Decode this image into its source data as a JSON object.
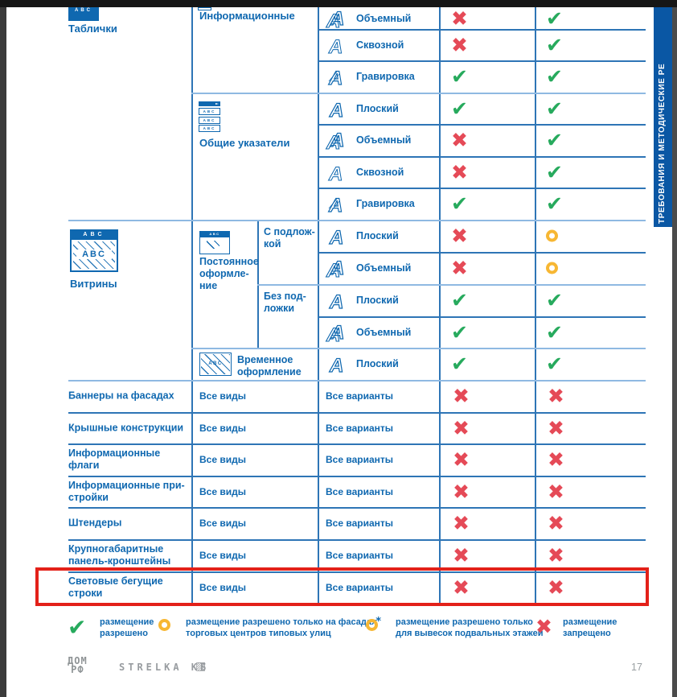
{
  "colors": {
    "brand-blue": "#0f68b0",
    "border-blue": "#2e75b6",
    "border-blue-light": "#8fb9e2",
    "tab-blue": "#0a57a4",
    "check-green": "#27aa5d",
    "cross-red": "#e54a57",
    "ring-yellow": "#f7b733",
    "highlight-red": "#e32119",
    "footer-gray": "#8f9496"
  },
  "side_tab": {
    "label": "ТРЕБОВАНИЯ И МЕТОДИЧЕСКИЕ РЕ"
  },
  "table": {
    "categories": {
      "tablichki": {
        "label": "Таблички",
        "icon_text": "ABC"
      },
      "vitriny": {
        "label": "Витрины",
        "icon_header": "ABC",
        "icon_body": "ABC"
      }
    },
    "groups": {
      "informacionnye": {
        "label": "Информационные"
      },
      "obshchie": {
        "label": "Общие указатели",
        "icon_rows": [
          "ABC",
          "ABC",
          "ABC"
        ]
      },
      "postoyannoe": {
        "label": "Постоянное\nоформле-\nние",
        "icon_text": "ABC"
      },
      "s_podlozhkoy": {
        "label": "С подлож-\nкой"
      },
      "bez_podlozhki": {
        "label": "Без под-\nложки"
      },
      "vremennoe": {
        "label": "Временное\nоформление",
        "icon_text": "ABC"
      }
    },
    "type_rows": [
      {
        "label": "Объемный",
        "m1": "cross",
        "m2": "check"
      },
      {
        "label": "Сквозной",
        "m1": "cross",
        "m2": "check"
      },
      {
        "label": "Гравировка",
        "m1": "check",
        "m2": "check"
      },
      {
        "label": "Плоский",
        "m1": "check",
        "m2": "check"
      },
      {
        "label": "Объемный",
        "m1": "cross",
        "m2": "check"
      },
      {
        "label": "Сквозной",
        "m1": "cross",
        "m2": "check"
      },
      {
        "label": "Гравировка",
        "m1": "check",
        "m2": "check"
      },
      {
        "label": "Плоский",
        "m1": "cross",
        "m2": "ring"
      },
      {
        "label": "Объемный",
        "m1": "cross",
        "m2": "ring"
      },
      {
        "label": "Плоский",
        "m1": "check",
        "m2": "check"
      },
      {
        "label": "Объемный",
        "m1": "check",
        "m2": "check"
      },
      {
        "label": "Плоский",
        "m1": "check",
        "m2": "check"
      }
    ],
    "simple_rows": [
      {
        "category": "Баннеры на фасадах",
        "kinds": "Все виды",
        "variants": "Все варианты",
        "m1": "cross",
        "m2": "cross"
      },
      {
        "category": "Крышные конструкции",
        "kinds": "Все виды",
        "variants": "Все варианты",
        "m1": "cross",
        "m2": "cross"
      },
      {
        "category": "Информационные флаги",
        "kinds": "Все виды",
        "variants": "Все варианты",
        "m1": "cross",
        "m2": "cross"
      },
      {
        "category": "Информационные при-\nстройки",
        "kinds": "Все виды",
        "variants": "Все варианты",
        "m1": "cross",
        "m2": "cross"
      },
      {
        "category": "Штендеры",
        "kinds": "Все виды",
        "variants": "Все варианты",
        "m1": "cross",
        "m2": "cross"
      },
      {
        "category": "Крупногабаритные\nпанель-кронштейны",
        "kinds": "Все виды",
        "variants": "Все варианты",
        "m1": "cross",
        "m2": "cross"
      },
      {
        "category": "Световые бегущие\nстроки",
        "kinds": "Все виды",
        "variants": "Все варианты",
        "m1": "cross",
        "m2": "cross"
      }
    ]
  },
  "legend": {
    "asterisk": "*",
    "items": [
      {
        "mark": "check",
        "text": "размещение\nразрешено"
      },
      {
        "mark": "ring",
        "text": "размещение разрешено только на фасадах\nторговых центров типовых улиц"
      },
      {
        "mark": "ring_asterisk",
        "text": "размещение разрешено только\nдля вывесок подвальных этажей"
      },
      {
        "mark": "cross",
        "text": "размещение\nзапрещено"
      }
    ]
  },
  "footer": {
    "logo_top": "ДОМ",
    "logo_bottom": "РФ",
    "brand": "STRELKA КБ",
    "page_number": "17"
  }
}
